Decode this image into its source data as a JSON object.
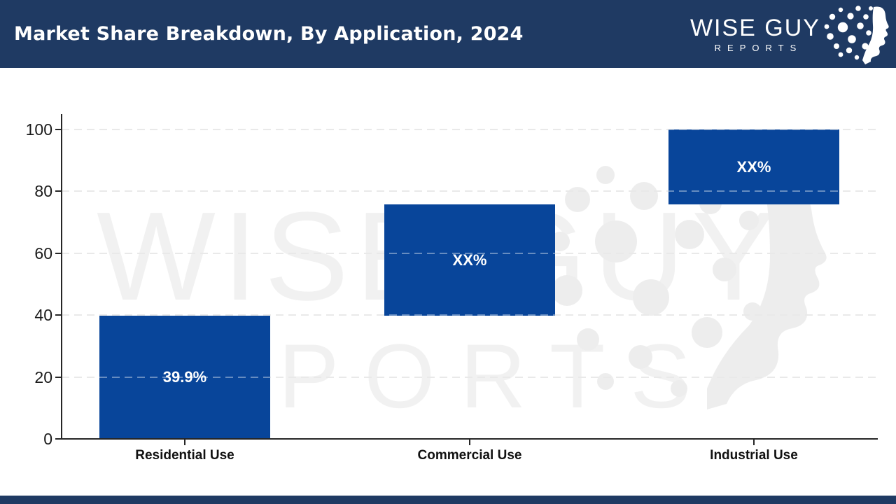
{
  "header": {
    "title": "Market Share Breakdown, By Application, 2024",
    "logo": {
      "wordmark": "WISE GUY",
      "subtitle": "REPORTS"
    }
  },
  "watermark": {
    "line1": "WISE GUY",
    "line2": "REPORTS"
  },
  "colors": {
    "header_bg": "#1f3a63",
    "footer_bg": "#1f3a63",
    "bar": "#08459a",
    "bar_label": "#ffffff",
    "grid": "#dcdcdc",
    "axis": "#262626",
    "tick_text": "#1a1a1a",
    "watermark": "#f1f1f1"
  },
  "chart_data": {
    "type": "bar",
    "subtype": "floating-segment-waterfall",
    "title": "Market Share Breakdown, By Application, 2024",
    "categories": [
      "Residential Use",
      "Commercial Use",
      "Industrial Use"
    ],
    "series": [
      {
        "name": "Market Share (%)",
        "segments": [
          {
            "category": "Residential Use",
            "start": 0,
            "end": 39.9,
            "label": "39.9%"
          },
          {
            "category": "Commercial Use",
            "start": 39.9,
            "end": 75.7,
            "label": "XX%"
          },
          {
            "category": "Industrial Use",
            "start": 75.7,
            "end": 100,
            "label": "XX%"
          }
        ]
      }
    ],
    "xlabel": "",
    "ylabel": "",
    "ylim": [
      0,
      100
    ],
    "yticks": [
      0,
      20,
      40,
      60,
      80,
      100
    ],
    "grid": "horizontal-dashed",
    "legend": "none"
  }
}
